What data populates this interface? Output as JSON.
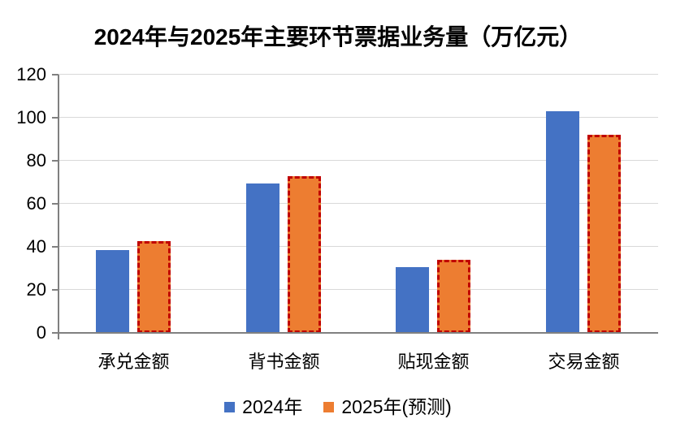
{
  "title": "2024年与2025年主要环节票据业务量（万亿元）",
  "chart_data": {
    "type": "bar",
    "title": "2024年与2025年主要环节票据业务量（万亿元）",
    "categories": [
      "承兑金额",
      "背书金额",
      "贴现金额",
      "交易金额"
    ],
    "series": [
      {
        "name": "2024年",
        "values": [
          38.5,
          69.5,
          30.5,
          103
        ],
        "color": "#4472c4",
        "bar_style": "solid"
      },
      {
        "name": "2025年(预测)",
        "values": [
          42.5,
          73,
          34,
          92
        ],
        "color": "#ed7d31",
        "bar_style": "dashed-outline",
        "outline_color": "#c00000"
      }
    ],
    "ylim": [
      0,
      120
    ],
    "ytick_step": 20,
    "yticks": [
      "0",
      "20",
      "40",
      "60",
      "80",
      "100",
      "120"
    ],
    "xlabel": "",
    "ylabel": "",
    "grid": "horizontal",
    "gridline_color": "#d9d9d9",
    "axis_color": "#808080",
    "legend_position": "bottom"
  }
}
